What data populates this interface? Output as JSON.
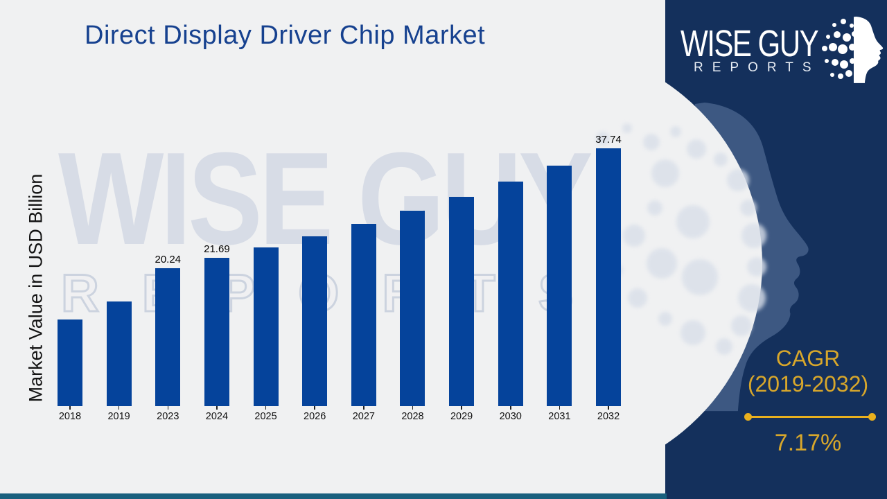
{
  "header": {
    "title": "Direct Display Driver Chip Market"
  },
  "brand": {
    "line1": "WISE GUY",
    "line2": "REPORTS"
  },
  "watermark": {
    "line1": "WISE GUY",
    "line2": "REPORTS"
  },
  "cagr": {
    "heading": "CAGR",
    "range": "(2019-2032)",
    "value": "7.17%"
  },
  "chart_data": {
    "type": "bar",
    "title": "Direct Display Driver Chip Market",
    "xlabel": "",
    "ylabel": "Market Value in USD Billion",
    "categories": [
      "2018",
      "2019",
      "2023",
      "2024",
      "2025",
      "2026",
      "2027",
      "2028",
      "2029",
      "2030",
      "2031",
      "2032"
    ],
    "values": [
      12.7,
      15.34,
      20.24,
      21.69,
      23.25,
      24.91,
      26.7,
      28.62,
      30.67,
      32.87,
      35.22,
      37.74
    ],
    "data_labels": {
      "2023": "20.24",
      "2024": "21.69",
      "2032": "37.74"
    },
    "ylim": [
      0,
      40
    ],
    "grid": false,
    "legend": "none",
    "bar_color": "#05439b"
  },
  "colors": {
    "background": "#f0f1f2",
    "panel_navy": "#14305c",
    "face_silhouette": "#3d5882",
    "bar_blue": "#05439b",
    "title_blue": "#16418f",
    "gold_text": "#d8a72b",
    "gold_line": "#e9b01e",
    "teal_strip": "#19607e",
    "watermark_gray": "#d7dce6"
  }
}
